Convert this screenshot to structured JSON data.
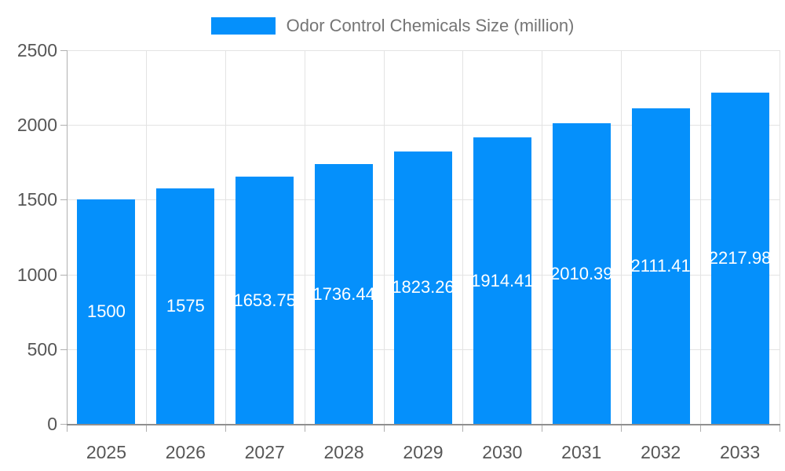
{
  "legend": {
    "label": "Odor Control Chemicals Size (million)",
    "swatch_color": "#0590FB"
  },
  "chart_data": {
    "type": "bar",
    "title": "Odor Control Chemicals Size (million)",
    "categories": [
      "2025",
      "2026",
      "2027",
      "2028",
      "2029",
      "2030",
      "2031",
      "2032",
      "2033"
    ],
    "values": [
      1500,
      1575,
      1653.75,
      1736.44,
      1823.26,
      1914.41,
      2010.39,
      2111.41,
      2217.98
    ],
    "bar_labels": [
      "1500",
      "1575",
      "1653.75",
      "1736.44",
      "1823.26",
      "1914.41",
      "2010.39",
      "2111.41",
      "2217.98"
    ],
    "xlabel": "",
    "ylabel": "",
    "ylim": [
      0,
      2500
    ],
    "y_ticks": [
      0,
      500,
      1000,
      1500,
      2000,
      2500
    ],
    "grid": true,
    "legend_position": "top",
    "bar_color": "#0590FB",
    "data_label_color": "#ffffff",
    "axis_label_color": "#565656",
    "grid_color": "#e3e3e3"
  }
}
